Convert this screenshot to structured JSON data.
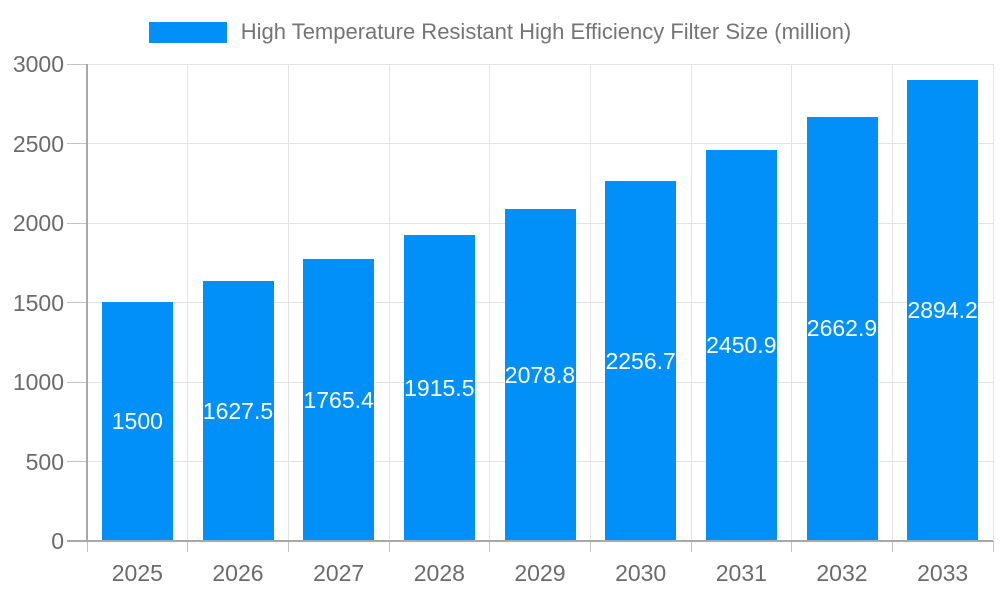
{
  "chart_data": {
    "type": "bar",
    "title": "High Temperature Resistant High Efficiency Filter Size (million)",
    "legend": {
      "label": "High Temperature Resistant High Efficiency Filter Size (million)",
      "position": "top-center"
    },
    "categories": [
      "2025",
      "2026",
      "2027",
      "2028",
      "2029",
      "2030",
      "2031",
      "2032",
      "2033"
    ],
    "series": [
      {
        "name": "High Temperature Resistant High Efficiency Filter Size (million)",
        "values": [
          1500,
          1627.5,
          1765.4,
          1915.5,
          2078.8,
          2256.7,
          2450.9,
          2662.9,
          2894.2
        ]
      }
    ],
    "value_labels": [
      "1500",
      "1627.5",
      "1765.4",
      "1915.5",
      "2078.8",
      "2256.7",
      "2450.9",
      "2662.9",
      "2894.2"
    ],
    "xlabel": "",
    "ylabel": "",
    "ylim": [
      0,
      3000
    ],
    "yticks": [
      0,
      500,
      1000,
      1500,
      2000,
      2500,
      3000
    ],
    "ytick_labels": [
      "0",
      "500",
      "1000",
      "1500",
      "2000",
      "2500",
      "3000"
    ],
    "grid": true,
    "colors": {
      "bar": "#0190f8",
      "grid": "#e3e3e3",
      "axis": "#a8a8a8",
      "tick": "#c2c2c2",
      "tick_text": "#6b6b6b",
      "legend_text": "#757575",
      "value_label_text": "#ffffff",
      "background": "#ffffff"
    }
  }
}
